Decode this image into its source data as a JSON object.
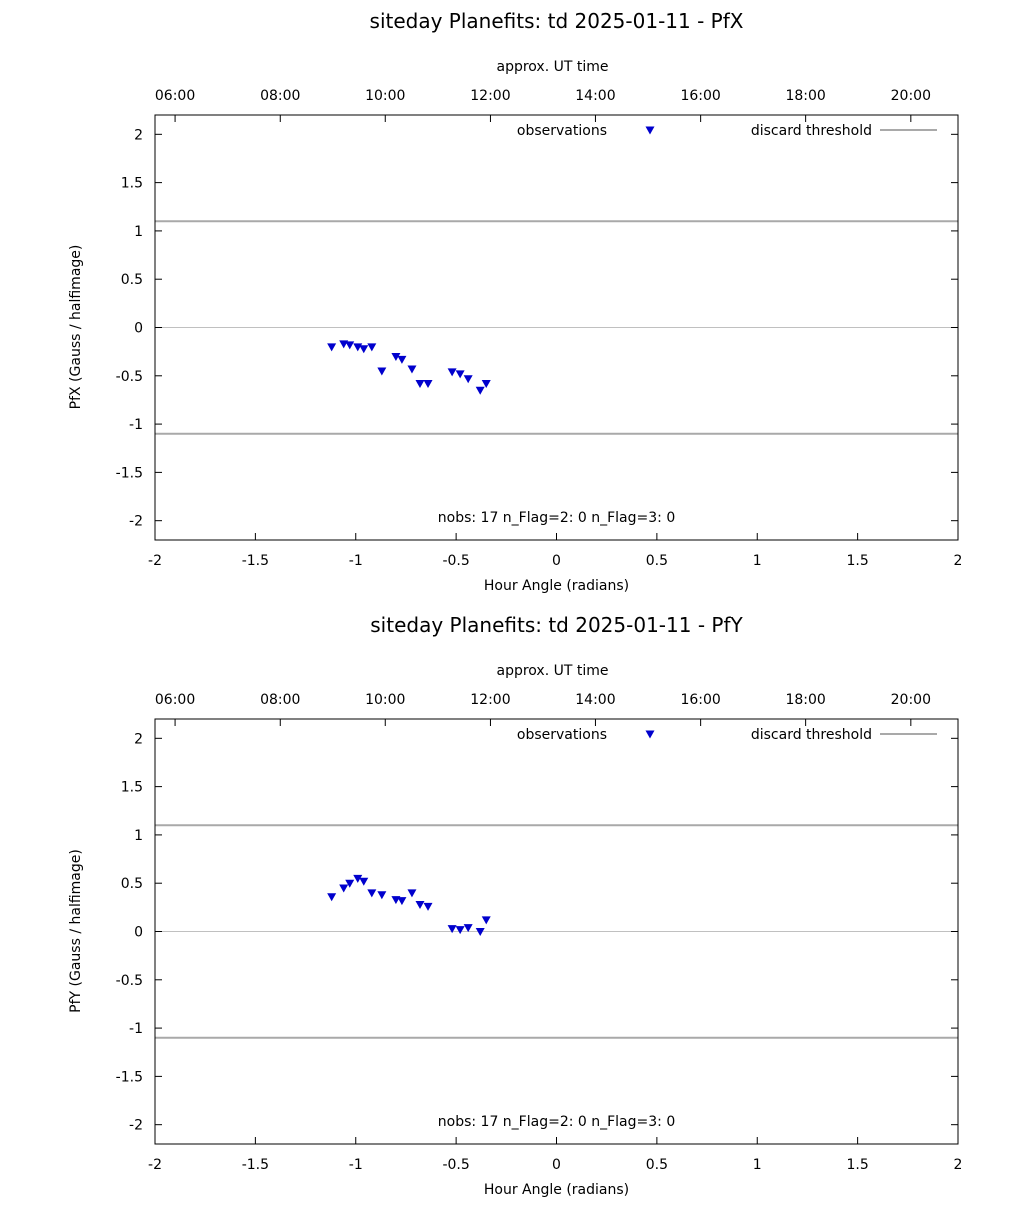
{
  "chart_data": [
    {
      "type": "scatter",
      "title": "siteday Planefits:  td  2025-01-11  -  PfX",
      "top_axis": {
        "label": "approx. UT time",
        "ticks": [
          {
            "pos": -1.9,
            "label": "06:00"
          },
          {
            "pos": -1.376,
            "label": "08:00"
          },
          {
            "pos": -0.853,
            "label": "10:00"
          },
          {
            "pos": -0.329,
            "label": "12:00"
          },
          {
            "pos": 0.194,
            "label": "14:00"
          },
          {
            "pos": 0.718,
            "label": "16:00"
          },
          {
            "pos": 1.241,
            "label": "18:00"
          },
          {
            "pos": 1.765,
            "label": "20:00"
          }
        ]
      },
      "xlabel": "Hour Angle (radians)",
      "ylabel": "PfX (Gauss / halfimage)",
      "xlim": [
        -2,
        2
      ],
      "ylim": [
        -2.2,
        2.2
      ],
      "xticks": [
        -2,
        -1.5,
        -1,
        -0.5,
        0,
        0.5,
        1,
        1.5,
        2
      ],
      "yticks": [
        -2,
        -1.5,
        -1,
        -0.5,
        0,
        0.5,
        1,
        1.5,
        2
      ],
      "thresholds": [
        1.1,
        -1.1
      ],
      "zero_line": 0,
      "legend": {
        "observations_label": "observations",
        "threshold_label": "discard threshold"
      },
      "annotation": "nobs: 17   n_Flag=2: 0   n_Flag=3: 0",
      "colors": {
        "marker": "#0000cd",
        "threshold": "#a9a9a9",
        "zero": "#c0c0c0",
        "border": "#000000"
      },
      "points": [
        [
          -1.12,
          -0.2
        ],
        [
          -1.06,
          -0.17
        ],
        [
          -1.03,
          -0.18
        ],
        [
          -0.99,
          -0.2
        ],
        [
          -0.96,
          -0.22
        ],
        [
          -0.92,
          -0.2
        ],
        [
          -0.87,
          -0.45
        ],
        [
          -0.8,
          -0.3
        ],
        [
          -0.77,
          -0.33
        ],
        [
          -0.72,
          -0.43
        ],
        [
          -0.68,
          -0.58
        ],
        [
          -0.64,
          -0.58
        ],
        [
          -0.52,
          -0.46
        ],
        [
          -0.48,
          -0.48
        ],
        [
          -0.44,
          -0.53
        ],
        [
          -0.38,
          -0.65
        ],
        [
          -0.35,
          -0.58
        ]
      ]
    },
    {
      "type": "scatter",
      "title": "siteday Planefits:  td  2025-01-11  -  PfY",
      "top_axis": {
        "label": "approx. UT time",
        "ticks": [
          {
            "pos": -1.9,
            "label": "06:00"
          },
          {
            "pos": -1.376,
            "label": "08:00"
          },
          {
            "pos": -0.853,
            "label": "10:00"
          },
          {
            "pos": -0.329,
            "label": "12:00"
          },
          {
            "pos": 0.194,
            "label": "14:00"
          },
          {
            "pos": 0.718,
            "label": "16:00"
          },
          {
            "pos": 1.241,
            "label": "18:00"
          },
          {
            "pos": 1.765,
            "label": "20:00"
          }
        ]
      },
      "xlabel": "Hour Angle (radians)",
      "ylabel": "PfY (Gauss / halfimage)",
      "xlim": [
        -2,
        2
      ],
      "ylim": [
        -2.2,
        2.2
      ],
      "xticks": [
        -2,
        -1.5,
        -1,
        -0.5,
        0,
        0.5,
        1,
        1.5,
        2
      ],
      "yticks": [
        -2,
        -1.5,
        -1,
        -0.5,
        0,
        0.5,
        1,
        1.5,
        2
      ],
      "thresholds": [
        1.1,
        -1.1
      ],
      "zero_line": 0,
      "legend": {
        "observations_label": "observations",
        "threshold_label": "discard threshold"
      },
      "annotation": "nobs: 17   n_Flag=2: 0   n_Flag=3: 0",
      "colors": {
        "marker": "#0000cd",
        "threshold": "#a9a9a9",
        "zero": "#c0c0c0",
        "border": "#000000"
      },
      "points": [
        [
          -1.12,
          0.36
        ],
        [
          -1.06,
          0.45
        ],
        [
          -1.03,
          0.5
        ],
        [
          -0.99,
          0.55
        ],
        [
          -0.96,
          0.52
        ],
        [
          -0.92,
          0.4
        ],
        [
          -0.87,
          0.38
        ],
        [
          -0.8,
          0.33
        ],
        [
          -0.77,
          0.32
        ],
        [
          -0.72,
          0.4
        ],
        [
          -0.68,
          0.28
        ],
        [
          -0.64,
          0.26
        ],
        [
          -0.52,
          0.03
        ],
        [
          -0.48,
          0.02
        ],
        [
          -0.44,
          0.04
        ],
        [
          -0.38,
          0.0
        ],
        [
          -0.35,
          0.12
        ]
      ]
    }
  ]
}
